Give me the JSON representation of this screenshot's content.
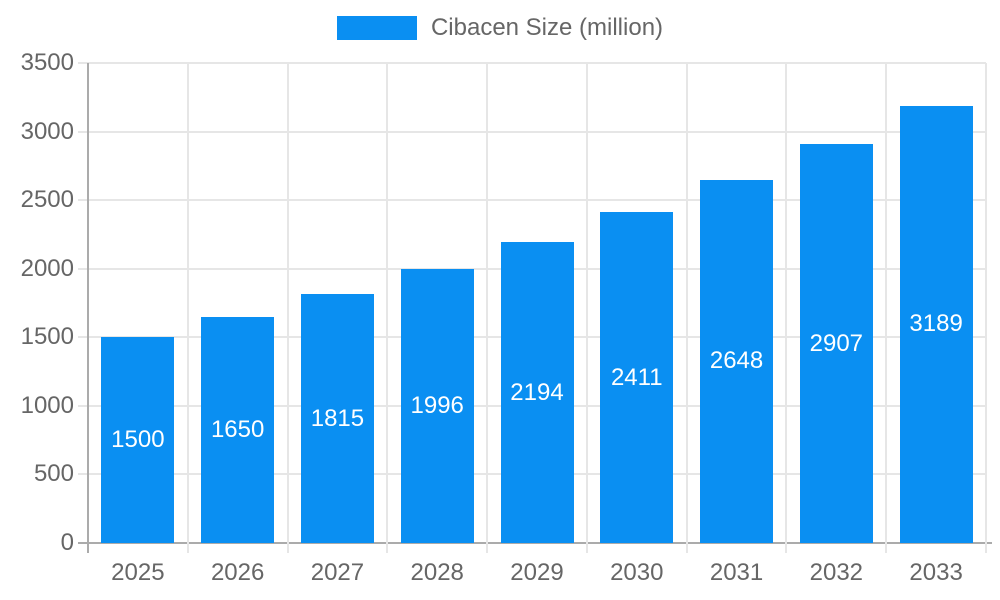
{
  "chart_data": {
    "type": "bar",
    "title": "Cibacen Size (million)",
    "legend": {
      "label": "Cibacen Size (million)",
      "position": "top-center"
    },
    "categories": [
      "2025",
      "2026",
      "2027",
      "2028",
      "2029",
      "2030",
      "2031",
      "2032",
      "2033"
    ],
    "series": [
      {
        "name": "Cibacen Size (million)",
        "values": [
          1500,
          1650,
          1815,
          1996,
          2194,
          2411,
          2648,
          2907,
          3189
        ]
      }
    ],
    "xlabel": "",
    "ylabel": "",
    "ylim": [
      0,
      3500
    ],
    "ytick_step": 500,
    "yticks": [
      0,
      500,
      1000,
      1500,
      2000,
      2500,
      3000,
      3500
    ],
    "grid": true,
    "value_labels": {
      "visible": true,
      "position": "inside-center"
    },
    "colors": {
      "bar": "#0a8ff2",
      "grid": "#e6e6e6",
      "axis": "#ababab",
      "text": "#666666",
      "value_label": "#ffffff",
      "background": "#ffffff"
    }
  }
}
